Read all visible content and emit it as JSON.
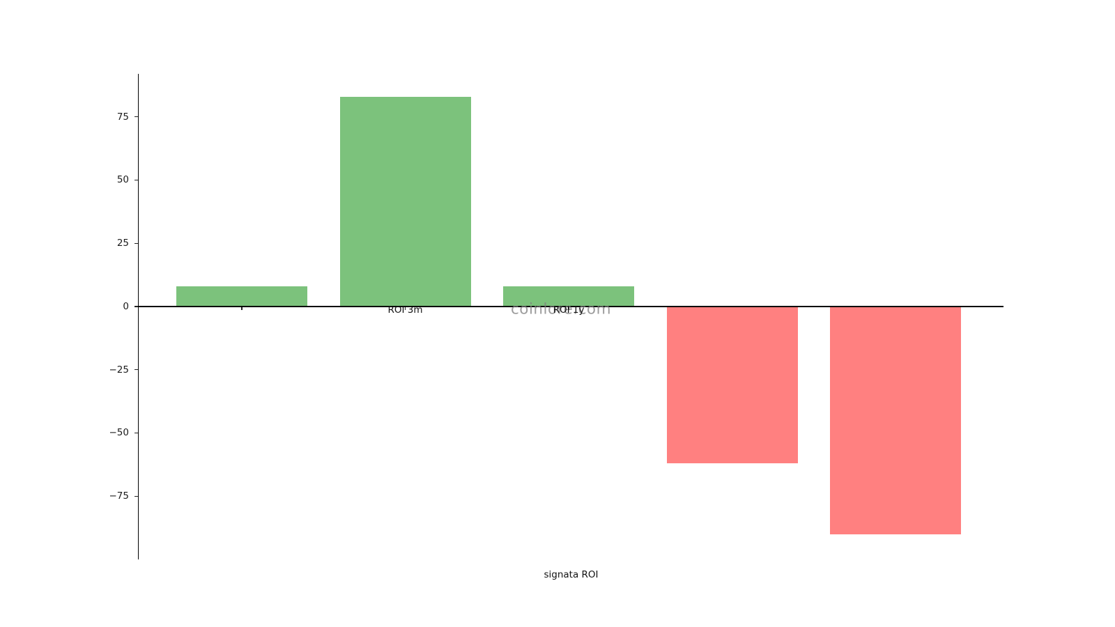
{
  "page": {
    "background": "#ffffff"
  },
  "watermark": {
    "text": "coinlore.com",
    "color": "rgba(128,128,128,0.78)"
  },
  "chart_data": {
    "type": "bar",
    "title": "",
    "xlabel": "signata ROI",
    "ylabel": "",
    "categories": [
      "",
      "ROI 3m",
      "ROI 1y",
      "",
      ""
    ],
    "values": [
      8,
      83,
      8,
      -62,
      -90
    ],
    "bar_colors": [
      "#7CC27C",
      "#7CC27C",
      "#7CC27C",
      "#FF8080",
      "#FF8080"
    ],
    "positive_color": "#7CC27C",
    "negative_color": "#FF8080",
    "ylim": [
      -100,
      92
    ],
    "yticks": [
      {
        "value": 75,
        "label": "75"
      },
      {
        "value": 50,
        "label": "50"
      },
      {
        "value": 25,
        "label": "25"
      },
      {
        "value": 0,
        "label": "0"
      },
      {
        "value": -25,
        "label": "−25"
      },
      {
        "value": -50,
        "label": "−50"
      },
      {
        "value": -75,
        "label": "−75"
      }
    ],
    "x_ticks": [
      {
        "index": 0,
        "label": ""
      },
      {
        "index": 1,
        "label": "ROI 3m"
      },
      {
        "index": 2,
        "label": "ROI 1y"
      }
    ],
    "grid": false,
    "legend": null
  }
}
